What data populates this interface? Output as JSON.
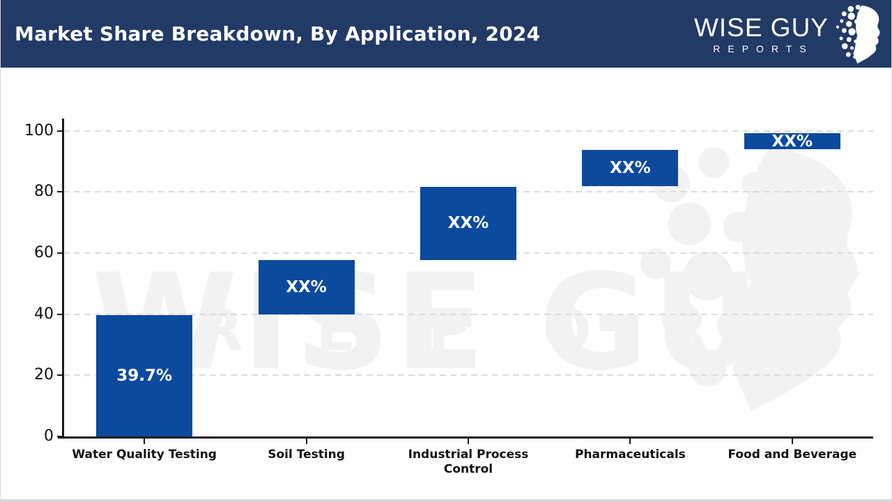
{
  "header": {
    "title": "Market Share Breakdown, By Application, 2024",
    "bg_color": "#223A66",
    "logo": {
      "line1": "WISE GUY",
      "line2": "REPORTS"
    }
  },
  "watermark": {
    "line1": "WISE GUY",
    "line2": "REPORTS"
  },
  "chart_data": {
    "type": "bar",
    "subtype": "waterfall",
    "title": "Market Share Breakdown, By Application, 2024",
    "xlabel": "",
    "ylabel": "",
    "ylim": [
      0,
      104
    ],
    "yticks": [
      "0",
      "20",
      "40",
      "60",
      "80",
      "100"
    ],
    "ytick_values": [
      0,
      20,
      40,
      60,
      80,
      100
    ],
    "grid": "horizontal-dashed",
    "legend": "none",
    "bar_color": "#0C4A9E",
    "bar_label_color": "#FFFFFF",
    "categories": [
      "Water Quality Testing",
      "Soil Testing",
      "Industrial Process Control",
      "Pharmaceuticals",
      "Food and Beverage"
    ],
    "segments": [
      {
        "category": "Water Quality Testing",
        "start": 0,
        "end": 39.7,
        "label": "39.7%"
      },
      {
        "category": "Soil Testing",
        "start": 40.0,
        "end": 57.8,
        "label": "XX%"
      },
      {
        "category": "Industrial Process Control",
        "start": 57.8,
        "end": 81.6,
        "label": "XX%"
      },
      {
        "category": "Pharmaceuticals",
        "start": 81.8,
        "end": 93.8,
        "label": "XX%"
      },
      {
        "category": "Food and Beverage",
        "start": 93.9,
        "end": 99.2,
        "label": "XX%"
      }
    ]
  }
}
